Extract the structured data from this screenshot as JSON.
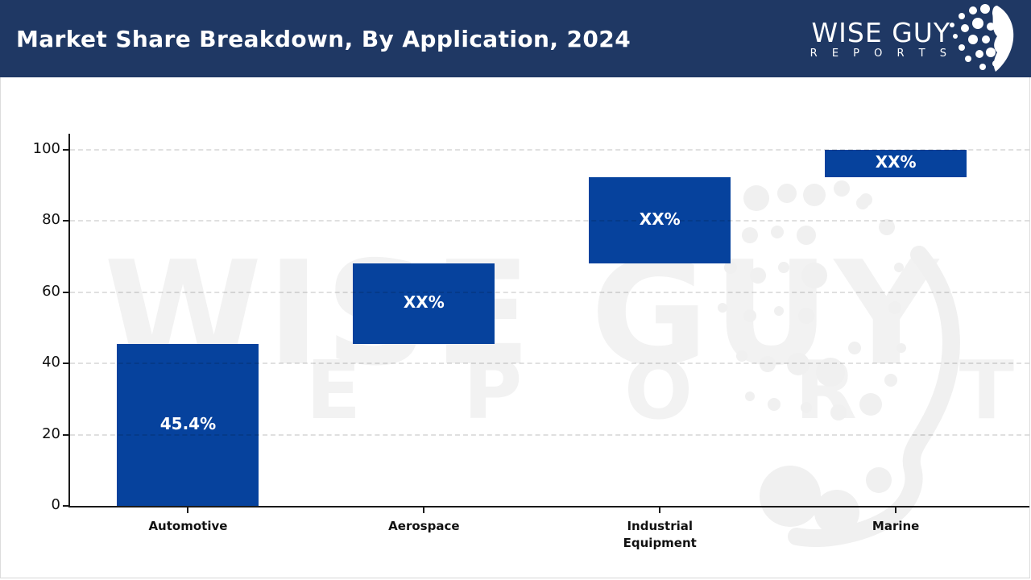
{
  "header": {
    "title": "Market Share Breakdown, By Application, 2024",
    "logo": {
      "line1": "WISE GUY",
      "line2": "R E P O R T S"
    }
  },
  "watermark": {
    "line1": "WISE GUY",
    "line2": "R E P O R T S"
  },
  "chart_data": {
    "type": "bar",
    "subtype": "stacked-waterfall",
    "title": "Market Share Breakdown, By Application, 2024",
    "categories": [
      "Automotive",
      "Aerospace",
      "Industrial Equipment",
      "Marine"
    ],
    "bars": [
      {
        "category": "Automotive",
        "start": 0,
        "end": 45.4,
        "label": "45.4%"
      },
      {
        "category": "Aerospace",
        "start": 45.4,
        "end": 68,
        "label": "XX%"
      },
      {
        "category": "Industrial Equipment",
        "start": 68,
        "end": 92.3,
        "label": "XX%"
      },
      {
        "category": "Marine",
        "start": 92.3,
        "end": 100,
        "label": "XX%"
      }
    ],
    "y_ticks": [
      0,
      20,
      40,
      60,
      80,
      100
    ],
    "ylim": [
      0,
      100
    ],
    "grid": "horizontal-dashed",
    "legend": "none",
    "bar_color": "#06429d",
    "label_color": "#ffffff"
  },
  "colors": {
    "header_bg": "#1f3864",
    "bar": "#06429d",
    "axis": "#1a1a1a",
    "grid_dash": "rgba(0,0,0,0.12)",
    "watermark": "#f2f2f2",
    "border": "#dcdcdc"
  }
}
